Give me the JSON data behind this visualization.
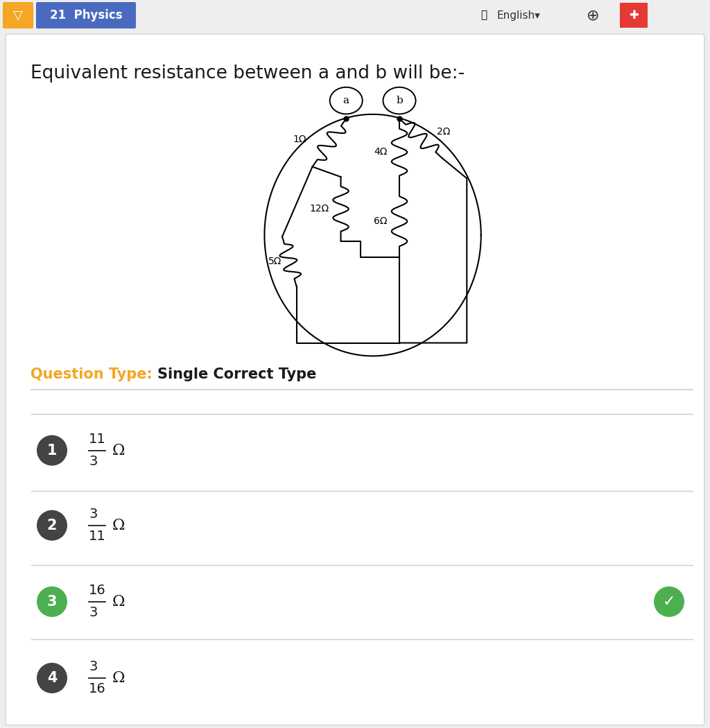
{
  "title": "Equivalent resistance between a and b will be:-",
  "question_type_label": "Question Type:",
  "question_type": "Single Correct Type",
  "options": [
    {
      "num": "1",
      "numerator": "11",
      "denominator": "3",
      "unit": "Ω",
      "correct": false
    },
    {
      "num": "2",
      "numerator": "3",
      "denominator": "11",
      "unit": "Ω",
      "correct": false
    },
    {
      "num": "3",
      "numerator": "16",
      "denominator": "3",
      "unit": "Ω",
      "correct": true
    },
    {
      "num": "4",
      "numerator": "3",
      "denominator": "16",
      "unit": "Ω",
      "correct": false
    }
  ],
  "correct_color": "#4caf50",
  "dark_circle_color": "#444444",
  "question_type_color": "#f5a623",
  "bg_color": "#ffffff",
  "divider_color": "#cccccc",
  "header_orange": "#f5a623",
  "header_blue": "#4a6abf",
  "header_bg": "#eeeeee",
  "card_border": "#dddddd"
}
